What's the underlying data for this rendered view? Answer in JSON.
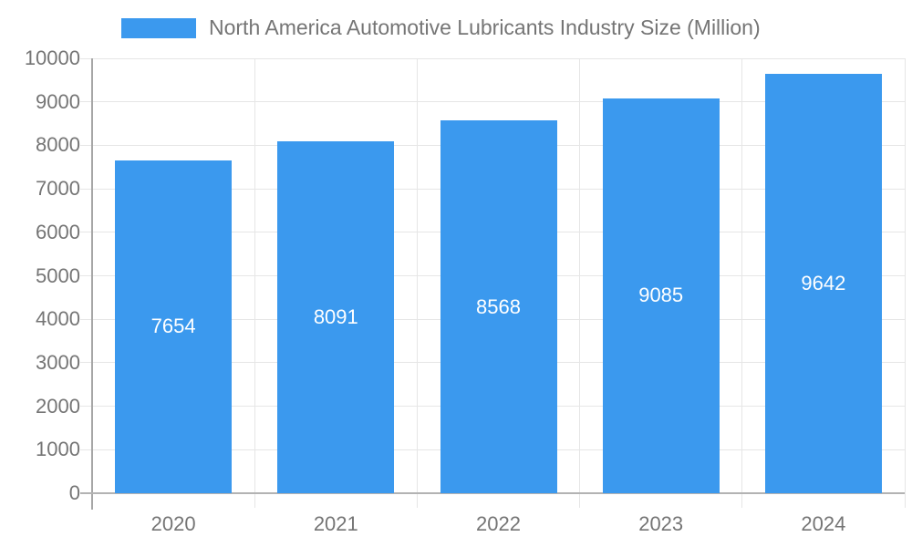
{
  "legend": {
    "label": "North America Automotive Lubricants Industry Size (Million)",
    "swatch_color": "#3b99ee"
  },
  "chart_data": {
    "type": "bar",
    "title": "",
    "xlabel": "",
    "ylabel": "",
    "categories": [
      "2020",
      "2021",
      "2022",
      "2023",
      "2024"
    ],
    "series": [
      {
        "name": "North America Automotive Lubricants Industry Size (Million)",
        "values": [
          7654,
          8091,
          8568,
          9085,
          9642
        ]
      }
    ],
    "data_labels_shown": true,
    "ylim": [
      0,
      10000
    ],
    "ytick_step": 1000,
    "ytick_labels": [
      "0",
      "1000",
      "2000",
      "3000",
      "4000",
      "5000",
      "6000",
      "7000",
      "8000",
      "9000",
      "10000"
    ],
    "grid": true,
    "legend_position": "top",
    "colors": {
      "bar": "#3b99ee",
      "bar_value_label": "#ffffff",
      "axis_text": "#757575",
      "gridline": "#e6e6e6",
      "x_axis_line": "#b3b3b3",
      "y_axis_line": "#a6a6a6",
      "background": "#ffffff"
    }
  }
}
